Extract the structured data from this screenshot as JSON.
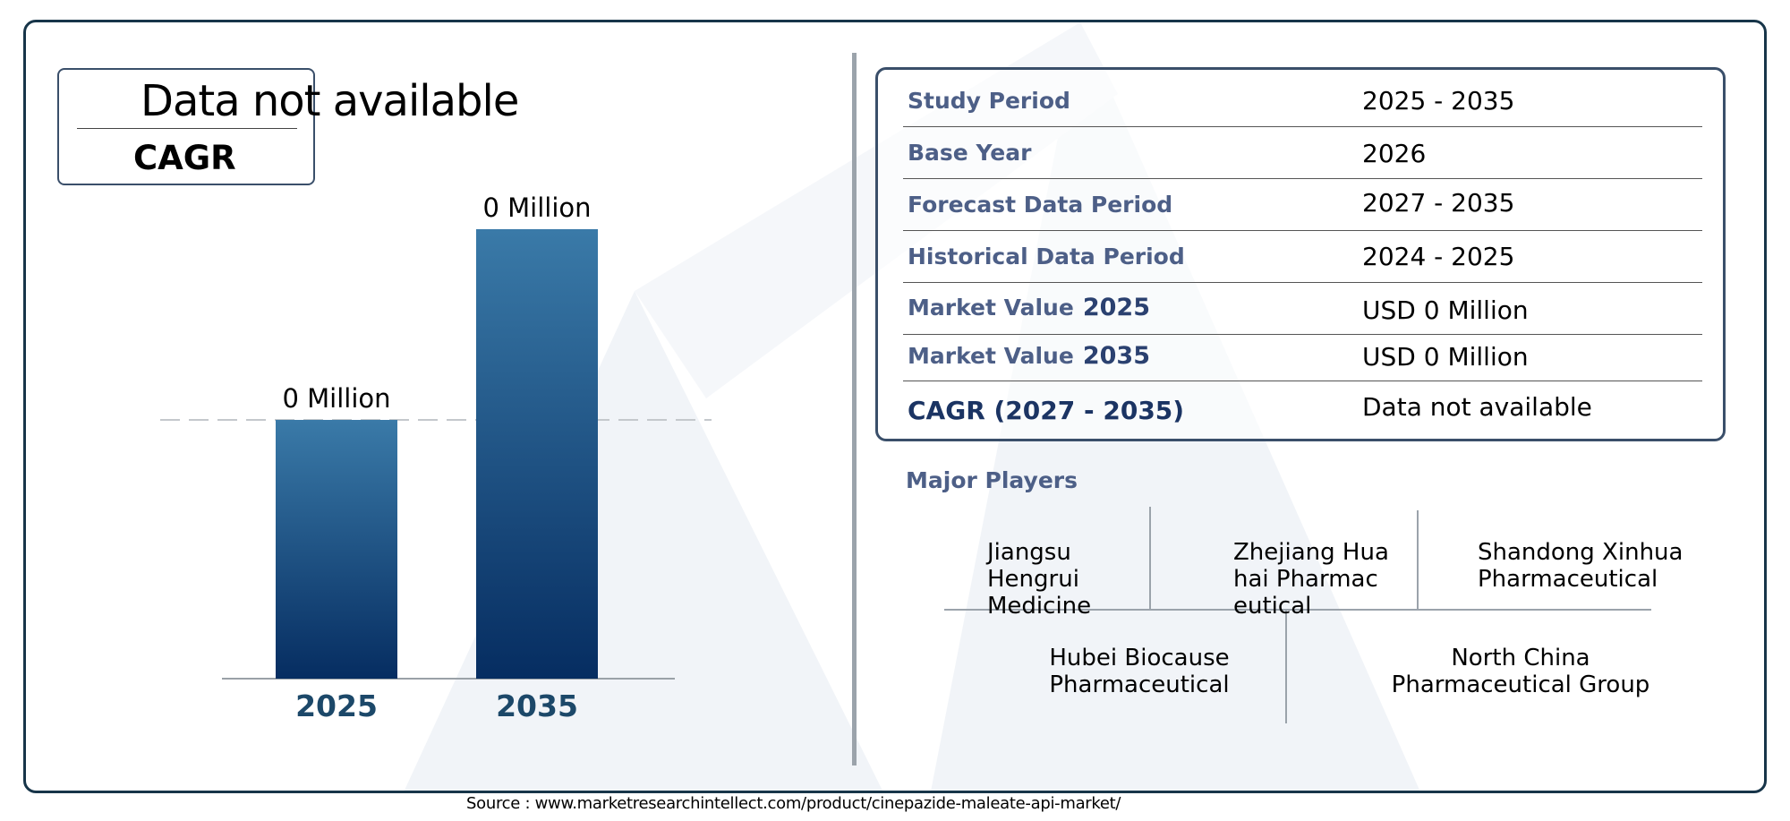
{
  "cagr_card": {
    "value": "Data not available",
    "label": "CAGR"
  },
  "chart_data": {
    "type": "bar",
    "categories": [
      "2025",
      "2035"
    ],
    "values": [
      0,
      0
    ],
    "data_labels": [
      "0 Million",
      "0 Million"
    ],
    "grid": false,
    "colors": {
      "bar_top": "#3a7aa8",
      "bar_bottom": "#062d61",
      "tick_label": "#1c4869"
    }
  },
  "info_table": {
    "rows": [
      {
        "label": "Study Period",
        "value": "2025 - 2035"
      },
      {
        "label": "Base Year",
        "value": "2026"
      },
      {
        "label": "Forecast Data Period",
        "value": "2027 - 2035"
      },
      {
        "label": "Historical Data Period",
        "value": "2024 - 2025"
      },
      {
        "label": "Market Value",
        "year": "2025",
        "value": "USD 0 Million"
      },
      {
        "label": "Market Value",
        "year": "2035",
        "value": "USD 0 Million"
      },
      {
        "label": "CAGR (2027 - 2035)",
        "value": "Data not available"
      }
    ]
  },
  "major_players": {
    "title": "Major Players",
    "players": [
      "Jiangsu Hengrui Medicine",
      "Zhejiang Huahai Pharmaceutical",
      "Shandong Xinhua Pharmaceutical",
      "Hubei Biocause Pharmaceutical",
      "North China Pharmaceutical Group"
    ]
  },
  "source": "Source : www.marketresearchintellect.com/product/cinepazide-maleate-api-market/"
}
